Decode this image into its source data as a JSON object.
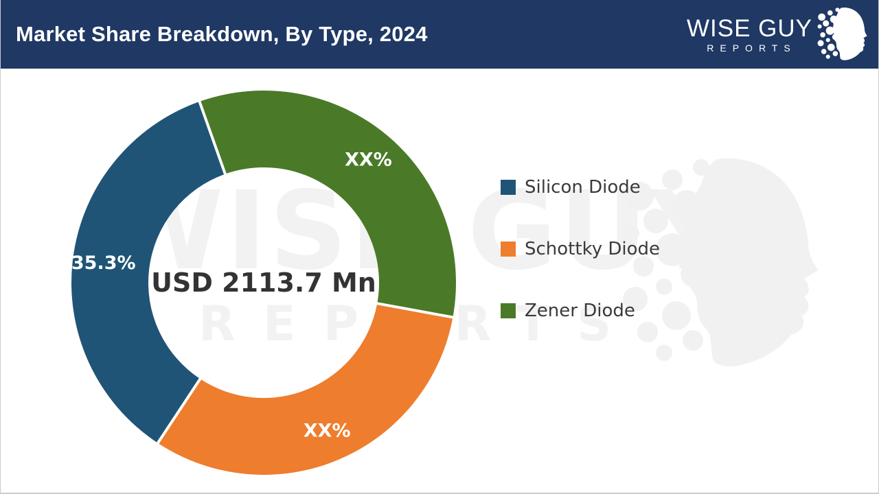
{
  "header": {
    "title": "Market Share Breakdown, By Type, 2024",
    "logo": {
      "line1": "WISE GUY",
      "line2": "REPORTS"
    }
  },
  "watermark": {
    "line1": "WISE GUY",
    "line2": "REPORTS"
  },
  "center_value": "USD 2113.7 Mn",
  "legend": {
    "items": [
      {
        "label": "Silicon Diode",
        "color": "#1F5476"
      },
      {
        "label": "Schottky Diode",
        "color": "#EE7D2E"
      },
      {
        "label": "Zener Diode",
        "color": "#4A7A28"
      }
    ]
  },
  "colors": {
    "header_bg": "#1F3864",
    "title_text": "#FFFFFF",
    "center_text": "#333333",
    "segment_gap": "#FFFFFF"
  },
  "chart_data": {
    "type": "pie",
    "subtype": "donut",
    "title": "Market Share Breakdown, By Type, 2024",
    "center_label": "USD 2113.7 Mn",
    "legend_position": "right",
    "start_angle_deg": 109.5,
    "direction": "clockwise",
    "inner_radius_ratio": 0.6,
    "segments": [
      {
        "name": "Zener Diode",
        "display_label": "XX%",
        "value_pct": 33.3,
        "color": "#4A7A28"
      },
      {
        "name": "Schottky Diode",
        "display_label": "XX%",
        "value_pct": 31.4,
        "color": "#EE7D2E"
      },
      {
        "name": "Silicon Diode",
        "display_label": "35.3%",
        "value_pct": 35.3,
        "color": "#1F5476"
      }
    ]
  }
}
